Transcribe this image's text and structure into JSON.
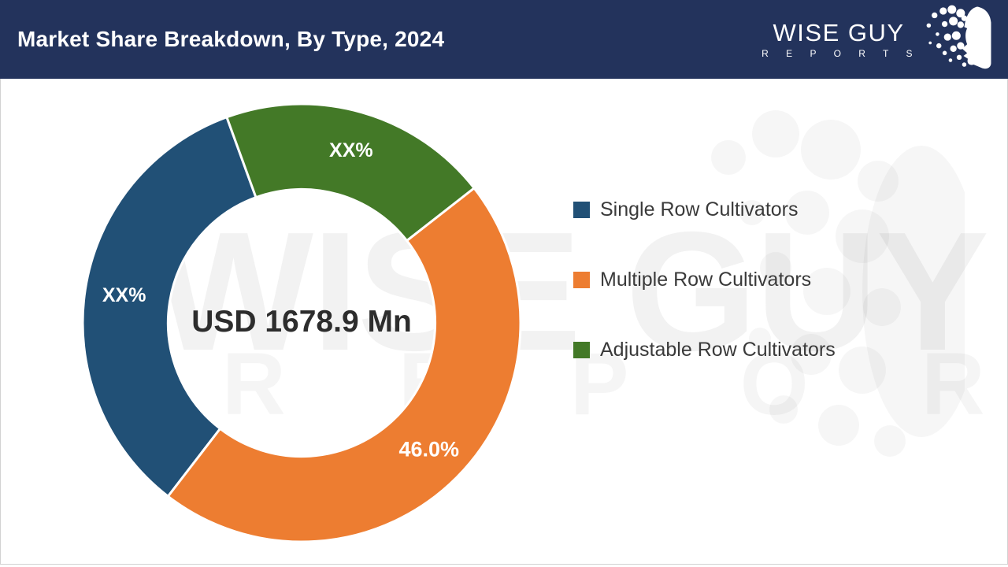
{
  "header": {
    "title": "Market Share Breakdown, By Type, 2024",
    "brand": {
      "name": "WISE GUY",
      "tagline": "R E P O R T S"
    }
  },
  "chart_data": {
    "type": "pie",
    "subtype": "donut",
    "title": "Market Share Breakdown, By Type, 2024",
    "center_label": "USD 1678.9 Mn",
    "categories": [
      "Single Row Cultivators",
      "Multiple Row Cultivators",
      "Adjustable Row Cultivators"
    ],
    "values": [
      34,
      46,
      20
    ],
    "value_labels": [
      "XX%",
      "46.0%",
      "XX%"
    ],
    "colors": [
      "#215076",
      "#ED7D31",
      "#437927"
    ],
    "start_angle_deg": -20,
    "direction": "counterclockwise",
    "inner_radius_ratio": 0.61,
    "legend_position": "right"
  },
  "legend": {
    "items": [
      {
        "label": "Single Row Cultivators",
        "color": "#215076"
      },
      {
        "label": "Multiple Row Cultivators",
        "color": "#ED7D31"
      },
      {
        "label": "Adjustable Row Cultivators",
        "color": "#437927"
      }
    ]
  },
  "watermark": {
    "wordmark": "WISE GUY",
    "reports": "R E P O R T S"
  },
  "colors": {
    "header_bg": "#23335C",
    "center_text": "#2d2d2d",
    "legend_text": "#3a3a3a"
  }
}
